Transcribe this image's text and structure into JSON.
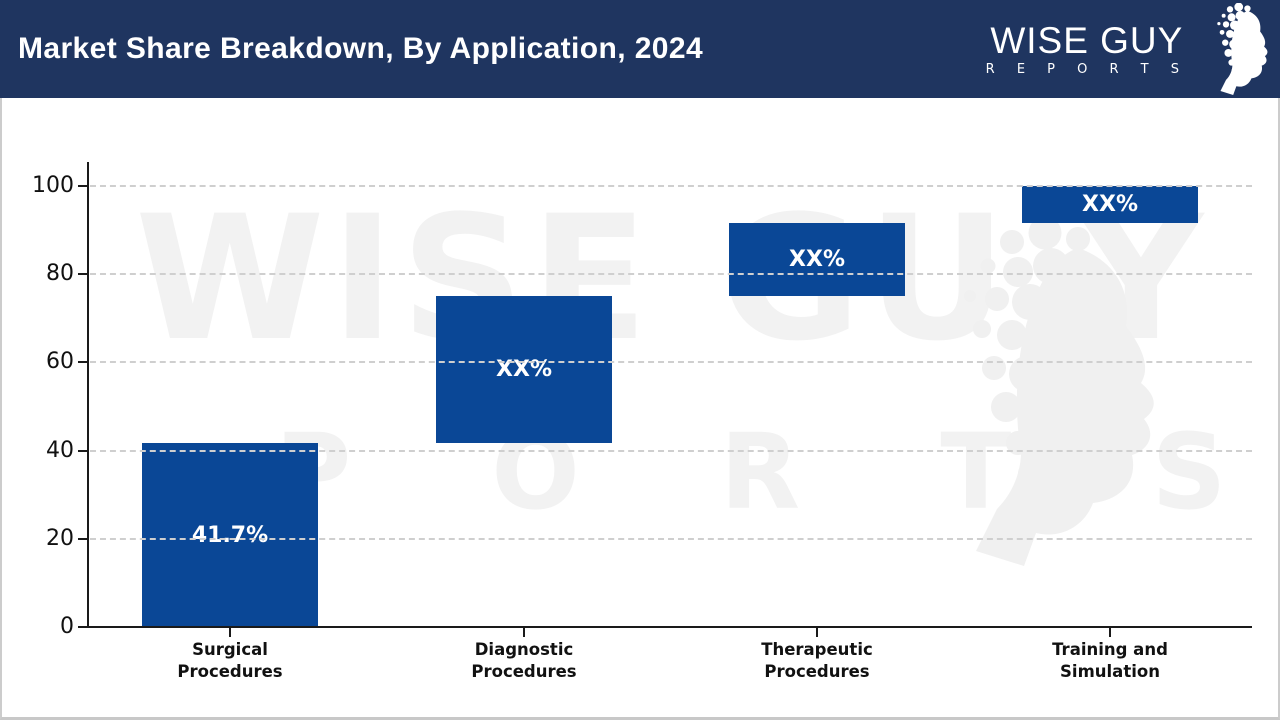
{
  "header": {
    "title": "Market Share Breakdown, By Application, 2024",
    "logo_primary": "WISE GUY",
    "logo_secondary": "R E P O R T S"
  },
  "watermark": {
    "line1": "WISE GU Y",
    "line2": "P O R T S"
  },
  "colors": {
    "header_bg": "#1f3560",
    "bar": "#0a4796",
    "bar_label": "#ffffff",
    "grid": "#cfcfcf",
    "axis": "#1a1a1a",
    "watermark": "#f2f2f2",
    "frame": "#cccccc"
  },
  "chart_data": {
    "type": "bar",
    "subtype": "waterfall",
    "title": "Market Share Breakdown, By Application, 2024",
    "categories": [
      "Surgical Procedures",
      "Diagnostic Procedures",
      "Therapeutic Procedures",
      "Training and Simulation"
    ],
    "category_lines": [
      [
        "Surgical",
        "Procedures"
      ],
      [
        "Diagnostic",
        "Procedures"
      ],
      [
        "Therapeutic",
        "Procedures"
      ],
      [
        "Training and",
        "Simulation"
      ]
    ],
    "segments": [
      {
        "label": "Surgical Procedures",
        "start": 0,
        "end": 41.7,
        "delta": 41.7,
        "value_label": "41.7%"
      },
      {
        "label": "Diagnostic Procedures",
        "start": 41.7,
        "end": 75,
        "delta": 33.3,
        "value_label": "XX%"
      },
      {
        "label": "Therapeutic Procedures",
        "start": 75,
        "end": 91.7,
        "delta": 16.7,
        "value_label": "XX%"
      },
      {
        "label": "Training and Simulation",
        "start": 91.7,
        "end": 100,
        "delta": 8.3,
        "value_label": "XX%"
      }
    ],
    "xlabel": "",
    "ylabel": "",
    "ylim": [
      0,
      100
    ],
    "yticks": [
      0,
      20,
      40,
      60,
      80,
      100
    ],
    "grid": "dashed-horizontal, drawn above bars",
    "legend": "none"
  }
}
